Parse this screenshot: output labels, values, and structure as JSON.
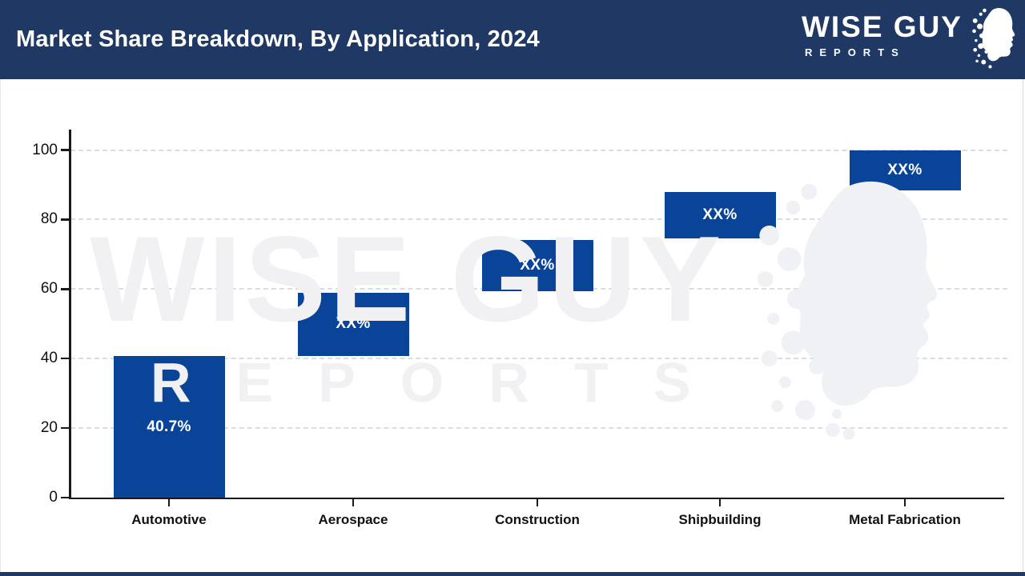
{
  "header": {
    "title": "Market Share Breakdown, By Application, 2024",
    "logo": {
      "line1": "WISE GUY",
      "line2": "REPORTS"
    }
  },
  "watermark": {
    "line1": "WISE GUY",
    "line2": "REPORTS"
  },
  "colors": {
    "header_bg": "#1f3864",
    "bar": "#0a4499",
    "grid": "#dcdcdc",
    "axis": "#1a1a1a",
    "bar_label": "#ffffff",
    "watermark": "#f1f1f3"
  },
  "chart_data": {
    "type": "bar",
    "subtype": "waterfall",
    "title": "Market Share Breakdown, By Application, 2024",
    "categories": [
      "Automotive",
      "Aerospace",
      "Construction",
      "Shipbuilding",
      "Metal Fabrication"
    ],
    "segments": [
      {
        "category": "Automotive",
        "start": 0,
        "end": 40.7,
        "label": "40.7%"
      },
      {
        "category": "Aerospace",
        "start": 40.7,
        "end": 59.0,
        "label": "XX%"
      },
      {
        "category": "Construction",
        "start": 59.3,
        "end": 74.2,
        "label": "XX%"
      },
      {
        "category": "Shipbuilding",
        "start": 74.5,
        "end": 88.0,
        "label": "XX%"
      },
      {
        "category": "Metal Fabrication",
        "start": 88.3,
        "end": 100.0,
        "label": "XX%"
      }
    ],
    "y_ticks": [
      0,
      20,
      40,
      60,
      80,
      100
    ],
    "ylim": [
      0,
      105
    ],
    "xlabel": "",
    "ylabel": "",
    "grid": "horizontal-dashed",
    "legend": "none",
    "bar_value_position": "center"
  }
}
